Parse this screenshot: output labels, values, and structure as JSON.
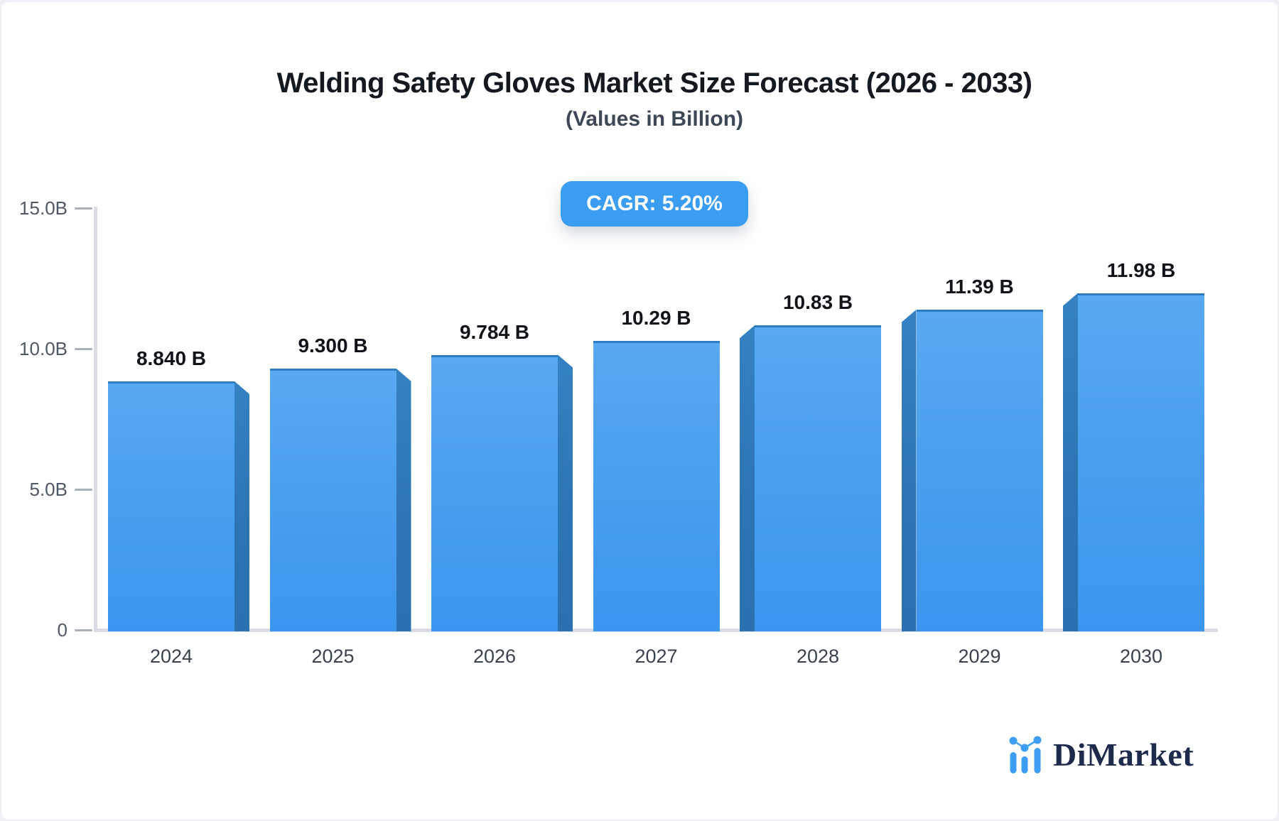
{
  "page": {
    "background": "#eef0f5",
    "card_background": "#ffffff"
  },
  "header": {
    "title": "Welding Safety Gloves Market Size Forecast (2026 - 2033)",
    "subtitle": "(Values in Billion)"
  },
  "badge": {
    "label": "CAGR: 5.20%",
    "background": "#3b9df2",
    "text_color": "#ffffff"
  },
  "chart_data": {
    "type": "bar",
    "title": "Welding Safety Gloves Market Size Forecast (2026 - 2033)",
    "subtitle": "(Values in Billion)",
    "annotation": "CAGR: 5.20%",
    "categories": [
      "2024",
      "2025",
      "2026",
      "2027",
      "2028",
      "2029",
      "2030"
    ],
    "values": [
      8.84,
      9.3,
      9.784,
      10.29,
      10.83,
      11.39,
      11.98
    ],
    "bar_labels": [
      "8.840 B",
      "9.300 B",
      "9.784 B",
      "10.29 B",
      "10.83 B",
      "11.39 B",
      "11.98 B"
    ],
    "xlabel": "",
    "ylabel": "",
    "ylim": [
      0,
      15
    ],
    "yticks": [
      {
        "value": 0,
        "label": "0"
      },
      {
        "value": 5,
        "label": "5.0B"
      },
      {
        "value": 10,
        "label": "10.0B"
      },
      {
        "value": 15,
        "label": "15.0B"
      }
    ],
    "grid": false,
    "legend": false,
    "style": "3d-perspective-bars",
    "colors": {
      "bar_face_top": "#58a9f1",
      "bar_face_bottom": "#3c95ef",
      "bar_top_edge": "#2f7cc2",
      "bar_side_panel": "#2d74b4",
      "axis_line": "#d9dde3",
      "tick_text": "#4f5866",
      "value_label_text": "#101418"
    }
  },
  "footer": {
    "logo_text": "DiMarket",
    "logo_icon": "bar-chart-logo-icon",
    "logo_text_color": "#1e2b4d",
    "logo_icon_color": "#3d9ef4"
  }
}
